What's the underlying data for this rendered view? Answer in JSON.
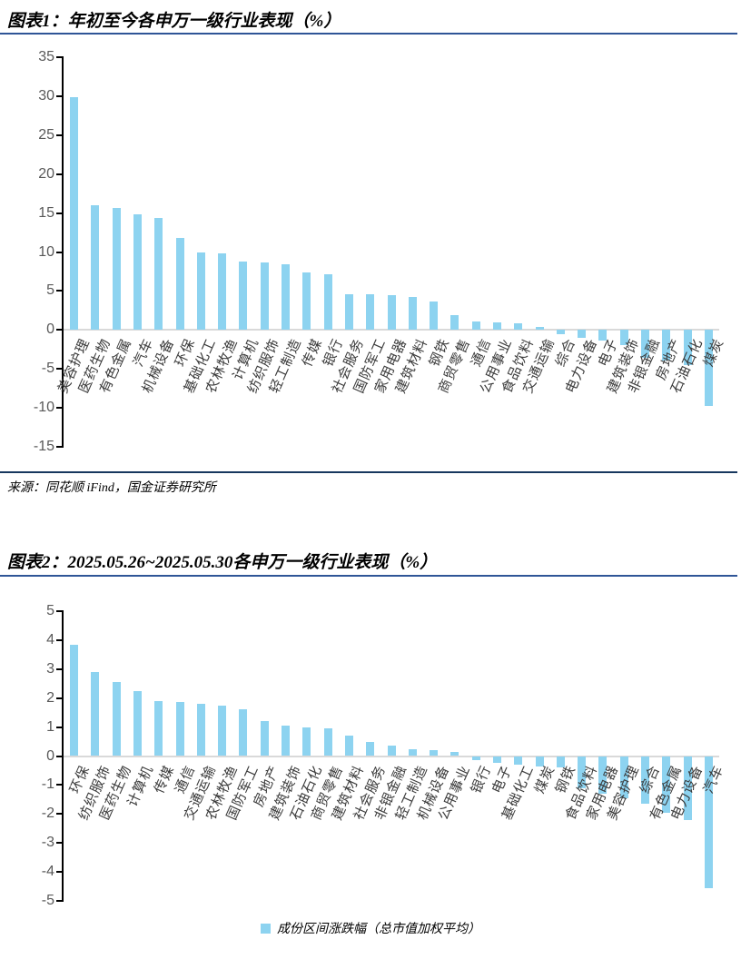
{
  "figure1": {
    "title": "图表1：年初至今各申万一级行业表现（%）",
    "source": "来源：同花顺 iFind，国金证券研究所"
  },
  "figure2": {
    "title": "图表2：2025.05.26~2025.05.30各申万一级行业表现（%）",
    "legend": "成份区间涨跌幅（总市值加权平均）"
  },
  "colors": {
    "bar": "#8DD3F0",
    "title_rule": "#2F5597",
    "separator_rule": "#17375E",
    "zero_line": "#D9D9D9",
    "axis": "#000000",
    "y_label": "#595959"
  },
  "chart_data": [
    {
      "type": "bar",
      "title": "年初至今各申万一级行业表现（%）",
      "xlabel": "",
      "ylabel": "",
      "ylim": [
        -15,
        35
      ],
      "yticks": [
        35,
        30,
        25,
        20,
        15,
        10,
        5,
        0,
        -5,
        -10,
        -15
      ],
      "grid": false,
      "legend_position": "none",
      "categories": [
        "美容护理",
        "医药生物",
        "有色金属",
        "汽车",
        "机械设备",
        "环保",
        "基础化工",
        "农林牧渔",
        "计算机",
        "纺织服饰",
        "轻工制造",
        "传媒",
        "银行",
        "社会服务",
        "国防军工",
        "家用电器",
        "建筑材料",
        "钢铁",
        "商贸零售",
        "通信",
        "公用事业",
        "食品饮料",
        "交通运输",
        "综合",
        "电力设备",
        "电子",
        "建筑装饰",
        "非银金融",
        "房地产",
        "石油石化",
        "煤炭"
      ],
      "values": [
        29.9,
        16.0,
        15.7,
        14.8,
        14.4,
        11.8,
        10.0,
        9.8,
        8.8,
        8.7,
        8.4,
        7.4,
        7.2,
        4.6,
        4.6,
        4.5,
        4.2,
        3.7,
        1.9,
        1.1,
        1.0,
        0.8,
        0.4,
        -0.5,
        -1.0,
        -1.4,
        -2.0,
        -3.6,
        -3.9,
        -4.5,
        -9.7
      ]
    },
    {
      "type": "bar",
      "title": "2025.05.26~2025.05.30各申万一级行业表现（%）",
      "xlabel": "",
      "ylabel": "",
      "ylim": [
        -5,
        5
      ],
      "yticks": [
        5,
        4,
        3,
        2,
        1,
        0,
        -1,
        -2,
        -3,
        -4,
        -5
      ],
      "grid": false,
      "legend_position": "bottom",
      "legend": [
        "成份区间涨跌幅（总市值加权平均）"
      ],
      "categories": [
        "环保",
        "纺织服饰",
        "医药生物",
        "计算机",
        "传媒",
        "通信",
        "交通运输",
        "农林牧渔",
        "国防军工",
        "房地产",
        "建筑装饰",
        "石油石化",
        "商贸零售",
        "建筑材料",
        "社会服务",
        "非银金融",
        "轻工制造",
        "机械设备",
        "公用事业",
        "银行",
        "电子",
        "基础化工",
        "煤炭",
        "钢铁",
        "食品饮料",
        "家用电器",
        "美容护理",
        "综合",
        "有色金属",
        "电力设备",
        "汽车"
      ],
      "values": [
        3.85,
        2.9,
        2.55,
        2.25,
        1.9,
        1.85,
        1.8,
        1.75,
        1.6,
        1.2,
        1.05,
        1.0,
        0.95,
        0.7,
        0.5,
        0.35,
        0.25,
        0.2,
        0.15,
        -0.15,
        -0.25,
        -0.3,
        -0.35,
        -0.4,
        -1.1,
        -1.3,
        -1.45,
        -1.65,
        -1.95,
        -2.2,
        -4.55
      ]
    }
  ]
}
